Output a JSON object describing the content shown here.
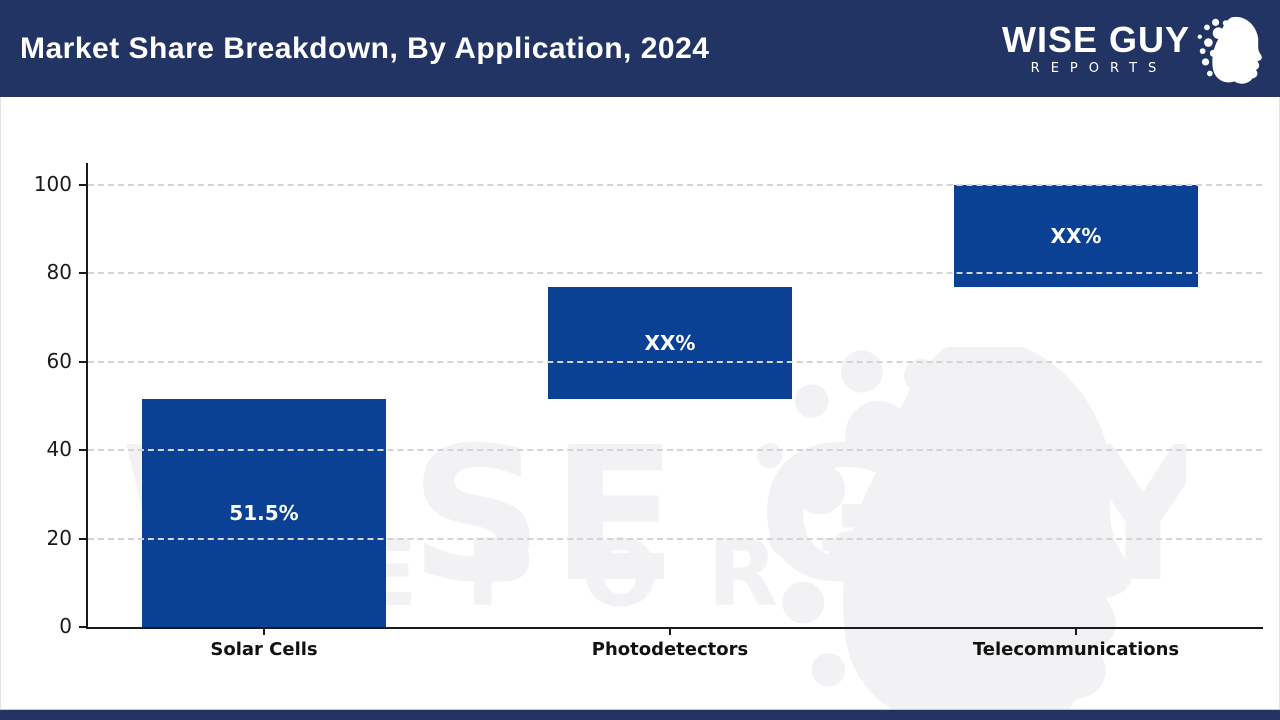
{
  "header": {
    "title": "Market Share Breakdown, By Application, 2024",
    "bg_color": "#213463",
    "logo": {
      "wordmark": "WISE GUY",
      "subtext": "REPORTS"
    }
  },
  "chart_data": {
    "type": "bar",
    "variant": "waterfall",
    "title": "Market Share Breakdown, By Application, 2024",
    "categories": [
      "Solar Cells",
      "Photodetectors",
      "Telecommunications"
    ],
    "segments": [
      {
        "category": "Solar Cells",
        "start": 0,
        "end": 51.5,
        "label": "51.5%"
      },
      {
        "category": "Photodetectors",
        "start": 51.5,
        "end": 77,
        "label": "XX%"
      },
      {
        "category": "Telecommunications",
        "start": 77,
        "end": 100,
        "label": "XX%"
      }
    ],
    "y_ticks": [
      0,
      20,
      40,
      60,
      80,
      100
    ],
    "ylim": [
      0,
      105
    ],
    "xlabel": "",
    "ylabel": "",
    "bar_color": "#0a4195",
    "bar_label_color": "#ffffff",
    "grid": "horizontal-dashed",
    "legend": "none"
  },
  "watermark": {
    "wordmark": "WISE GUY",
    "subtext": "REPORTS"
  },
  "footer": {
    "bg_color": "#213463"
  }
}
